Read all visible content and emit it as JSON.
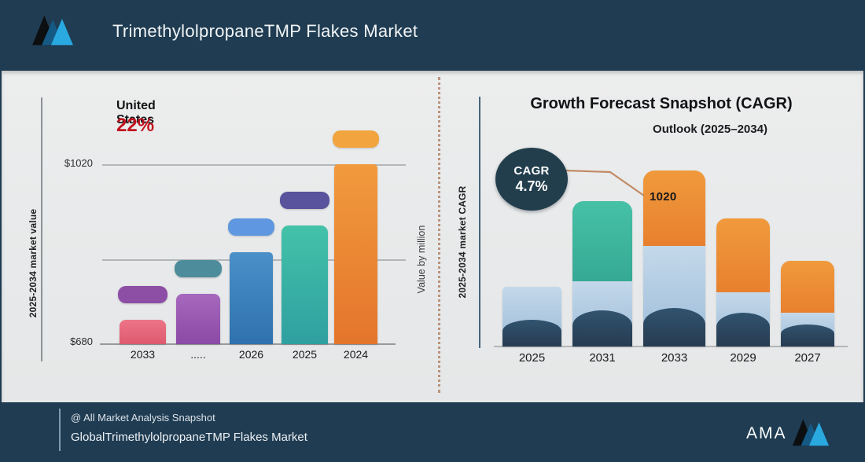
{
  "header": {
    "title": "TrimethylolpropaneTMP Flakes Market",
    "logo": "ama-mountain-logo"
  },
  "left_chart": {
    "region_label": "United States",
    "highlight_value": "22%",
    "y_axis_title": "2025-2034 market value",
    "value_axis_note": "Value by million",
    "tick_top": "$1020",
    "tick_bottom": "$680"
  },
  "right_chart": {
    "title": "Growth Forecast Snapshot (CAGR)",
    "subtitle": "Outlook (2025–2034)",
    "y_axis_title": "2025-2034 market CAGR",
    "badge_line1": "CAGR",
    "badge_line2": "4.7%",
    "bar_label": "1020"
  },
  "footer": {
    "line1": "@ All Market Analysis Snapshot",
    "line2": "GlobalTrimethylolpropaneTMP Flakes Market",
    "brand": "AMA"
  },
  "colors": {
    "navy_bg": "#1f3c52",
    "panel_bg": "#e8eaeb",
    "accent_red": "#c2131f",
    "badge_navy": "#223e4d",
    "callout_line": "#c18a64",
    "divider_dots": "#b3846a",
    "logo_black": "#0c0e10",
    "logo_midblue": "#155a85",
    "logo_cyan": "#2aa9e1",
    "left_bar_gradients": [
      [
        "#ee7487",
        "#dd5a6e"
      ],
      [
        "#a768be",
        "#8a4aa6"
      ],
      [
        "#4a90c9",
        "#2e71ae"
      ],
      [
        "#43c2a9",
        "#2f9fa0"
      ],
      [
        "#f19a3d",
        "#e4752c"
      ]
    ],
    "left_cap_colors": [
      "#8d4fa6",
      "#4d8c9b",
      "#5f97e0",
      "#59529c",
      "#f2a53e"
    ],
    "right_segment_gradients": {
      "lightblue": [
        "#c4d8ea",
        "#9cbcd8"
      ],
      "teal": [
        "#46c1a6",
        "#36a994"
      ],
      "orange": [
        "#f09a3c",
        "#e8802e"
      ],
      "dome": [
        "#31536f",
        "#273b50"
      ]
    }
  },
  "chart_data": [
    {
      "type": "bar",
      "title": "United States",
      "annotation": "22%",
      "ylabel": "2025-2034 market value",
      "ylabel_secondary": "Value by million",
      "categories": [
        "2033",
        ".....",
        "2026",
        "2025",
        "2024"
      ],
      "values": [
        726,
        775,
        854,
        904,
        1020
      ],
      "ylim": [
        680,
        1020
      ],
      "yticks": [
        680,
        1020
      ],
      "ytick_labels": [
        "$680",
        "$1020"
      ],
      "grid": "horizontal, gridlines at 680 / 850 / 1020",
      "legend": "none",
      "note": "each column has a floating rounded cap block above it"
    },
    {
      "type": "bar",
      "variant": "stacked-decorative",
      "title": "Growth Forecast Snapshot (CAGR)",
      "subtitle": "Outlook (2025–2034)",
      "ylabel": "2025-2034 market CAGR",
      "cagr_badge": "CAGR 4.7%",
      "categories": [
        "2025",
        "2031",
        "2033",
        "2029",
        "2027"
      ],
      "relative_heights": [
        76,
        185,
        224,
        163,
        109
      ],
      "data_labels": {
        "2033": "1020"
      },
      "grid": "off",
      "legend": "none",
      "bars": [
        {
          "category": "2025",
          "segments": [
            [
              "lightblue",
              76
            ]
          ],
          "dome": 34
        },
        {
          "category": "2031",
          "segments": [
            [
              "teal",
              102
            ],
            [
              "lightblue",
              83
            ]
          ],
          "dome": 46
        },
        {
          "category": "2033",
          "segments": [
            [
              "orange",
              96
            ],
            [
              "lightblue",
              128
            ]
          ],
          "dome": 49
        },
        {
          "category": "2029",
          "segments": [
            [
              "orange",
              94
            ],
            [
              "lightblue",
              69
            ]
          ],
          "dome": 43
        },
        {
          "category": "2027",
          "segments": [
            [
              "orange",
              66
            ],
            [
              "lightblue",
              43
            ]
          ],
          "dome": 28
        }
      ]
    }
  ]
}
